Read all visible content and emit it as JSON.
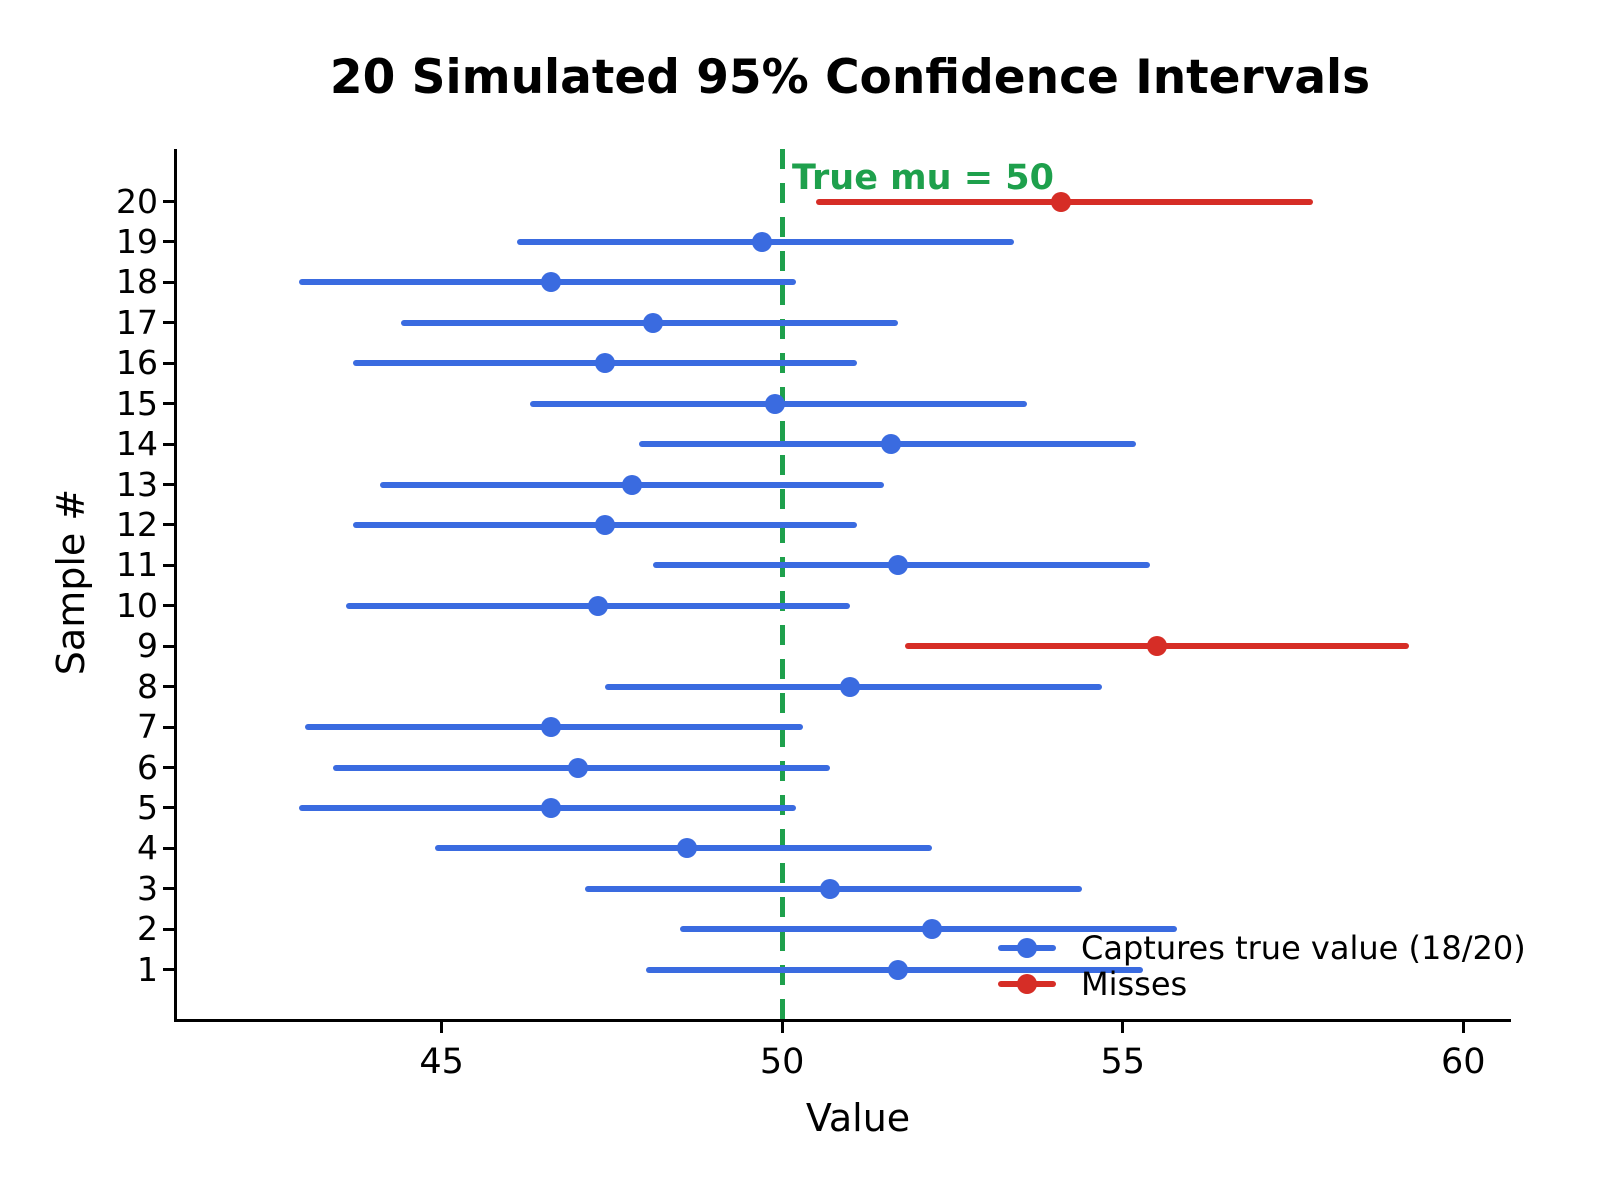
{
  "chart_data": {
    "type": "errorbar",
    "title": "20 Simulated 95% Confidence Intervals",
    "xlabel": "Value",
    "ylabel": "Sample #",
    "x_ticks": [
      45,
      50,
      55,
      60
    ],
    "xlim": [
      41.1,
      60.7
    ],
    "ylim": [
      -0.22,
      21.3
    ],
    "grid": false,
    "annotation": {
      "text": "True mu = 50",
      "x": 50
    },
    "legend": {
      "position": "lower right",
      "entries": [
        {
          "label": "Captures true value (18/20)",
          "series": "capture"
        },
        {
          "label": "Misses",
          "series": "miss"
        }
      ]
    },
    "colors": {
      "capture": "#3a6be0",
      "miss": "#d62d26",
      "true_mu": "#1ea04c",
      "axis": "#000000"
    },
    "samples": [
      {
        "id": 1,
        "lo": 48.0,
        "mean": 51.7,
        "hi": 55.3,
        "captures": true
      },
      {
        "id": 2,
        "lo": 48.5,
        "mean": 52.2,
        "hi": 55.8,
        "captures": true
      },
      {
        "id": 3,
        "lo": 47.1,
        "mean": 50.7,
        "hi": 54.4,
        "captures": true
      },
      {
        "id": 4,
        "lo": 44.9,
        "mean": 48.6,
        "hi": 52.2,
        "captures": true
      },
      {
        "id": 5,
        "lo": 42.9,
        "mean": 46.6,
        "hi": 50.2,
        "captures": true
      },
      {
        "id": 6,
        "lo": 43.4,
        "mean": 47.0,
        "hi": 50.7,
        "captures": true
      },
      {
        "id": 7,
        "lo": 43.0,
        "mean": 46.6,
        "hi": 50.3,
        "captures": true
      },
      {
        "id": 8,
        "lo": 47.4,
        "mean": 51.0,
        "hi": 54.7,
        "captures": true
      },
      {
        "id": 9,
        "lo": 51.8,
        "mean": 55.5,
        "hi": 59.2,
        "captures": false
      },
      {
        "id": 10,
        "lo": 43.6,
        "mean": 47.3,
        "hi": 51.0,
        "captures": true
      },
      {
        "id": 11,
        "lo": 48.1,
        "mean": 51.7,
        "hi": 55.4,
        "captures": true
      },
      {
        "id": 12,
        "lo": 43.7,
        "mean": 47.4,
        "hi": 51.1,
        "captures": true
      },
      {
        "id": 13,
        "lo": 44.1,
        "mean": 47.8,
        "hi": 51.5,
        "captures": true
      },
      {
        "id": 14,
        "lo": 47.9,
        "mean": 51.6,
        "hi": 55.2,
        "captures": true
      },
      {
        "id": 15,
        "lo": 46.3,
        "mean": 49.9,
        "hi": 53.6,
        "captures": true
      },
      {
        "id": 16,
        "lo": 43.7,
        "mean": 47.4,
        "hi": 51.1,
        "captures": true
      },
      {
        "id": 17,
        "lo": 44.4,
        "mean": 48.1,
        "hi": 51.7,
        "captures": true
      },
      {
        "id": 18,
        "lo": 42.9,
        "mean": 46.6,
        "hi": 50.2,
        "captures": true
      },
      {
        "id": 19,
        "lo": 46.1,
        "mean": 49.7,
        "hi": 53.4,
        "captures": true
      },
      {
        "id": 20,
        "lo": 50.5,
        "mean": 54.1,
        "hi": 57.8,
        "captures": false
      }
    ]
  }
}
